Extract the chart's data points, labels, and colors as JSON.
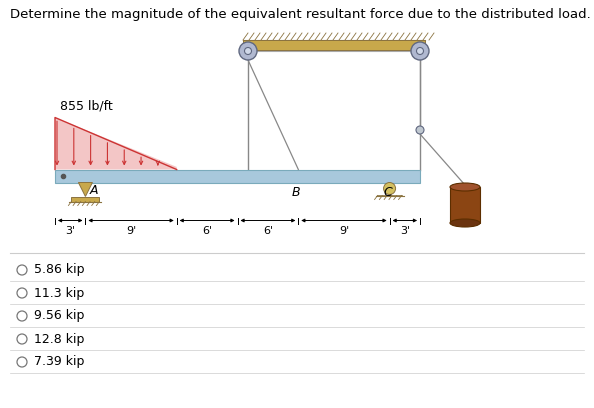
{
  "title": "Determine the magnitude of the equivalent resultant force due to the distributed load.",
  "load_label": "855 lb/ft",
  "answer_choices": [
    "5.86 kip",
    "11.3 kip",
    "9.56 kip",
    "12.8 kip",
    "7.39 kip"
  ],
  "beam_color": "#a8c8dc",
  "beam_edge_color": "#7aaabb",
  "load_color": "#cc3333",
  "load_fill": "#f0b8b8",
  "support_color": "#c8a84b",
  "support_edge": "#8b7340",
  "rope_color": "#888888",
  "pulley_face": "#b0b8d0",
  "pulley_edge": "#606880",
  "weight_body": "#8b4513",
  "weight_top": "#a0522d",
  "ceiling_color": "#c8a84b",
  "ceiling_hatch": "#8b7340",
  "pin_color": "#c8a84b",
  "bg_color": "#ffffff",
  "title_fontsize": 9.5,
  "label_fontsize": 9,
  "dim_fontsize": 8,
  "choice_fontsize": 9,
  "dims_ft": [
    3,
    9,
    6,
    6,
    9,
    3
  ],
  "dim_labels": [
    "3'",
    "9'",
    "6'",
    "6'",
    "9'",
    "3'"
  ]
}
